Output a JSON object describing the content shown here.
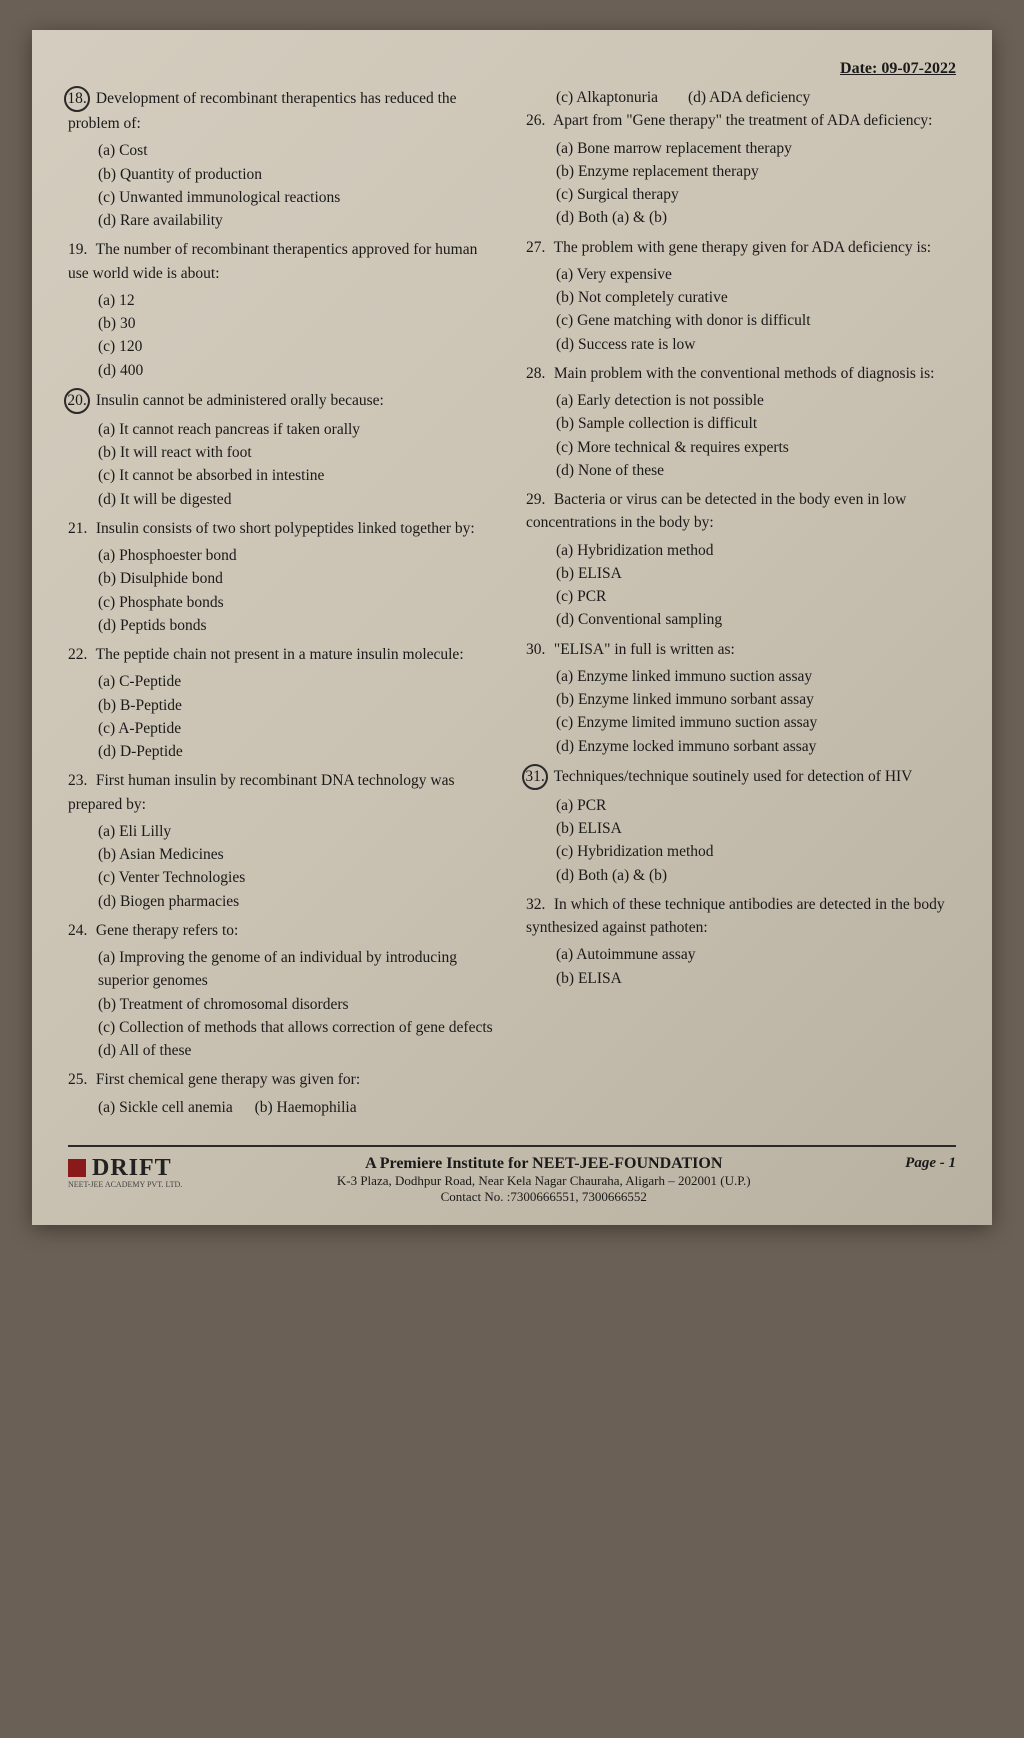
{
  "date": "Date: 09-07-2022",
  "left": {
    "q18": {
      "num": "18.",
      "text": "Development of recombinant therapentics has reduced the problem of:",
      "a": "(a) Cost",
      "b": "(b) Quantity of production",
      "c": "(c) Unwanted immunological reactions",
      "d": "(d) Rare availability"
    },
    "q19": {
      "num": "19.",
      "text": "The number of recombinant therapentics approved for human use world wide is about:",
      "a": "(a) 12",
      "b": "(b) 30",
      "c": "(c) 120",
      "d": "(d) 400"
    },
    "q20": {
      "num": "20.",
      "text": "Insulin cannot be administered orally because:",
      "a": "(a) It cannot reach pancreas if taken orally",
      "b": "(b) It will react with foot",
      "c": "(c) It cannot be absorbed in intestine",
      "d": "(d) It will be digested"
    },
    "q21": {
      "num": "21.",
      "text": "Insulin consists of two short polypeptides linked together by:",
      "a": "(a) Phosphoester bond",
      "b": "(b) Disulphide bond",
      "c": "(c) Phosphate bonds",
      "d": "(d) Peptids bonds"
    },
    "q22": {
      "num": "22.",
      "text": "The peptide chain not present in a mature insulin molecule:",
      "a": "(a) C-Peptide",
      "b": "(b) B-Peptide",
      "c": "(c) A-Peptide",
      "d": "(d) D-Peptide"
    },
    "q23": {
      "num": "23.",
      "text": "First human insulin by recombinant DNA technology was prepared by:",
      "a": "(a) Eli Lilly",
      "b": "(b) Asian Medicines",
      "c": "(c) Venter Technologies",
      "d": "(d) Biogen pharmacies"
    },
    "q24": {
      "num": "24.",
      "text": "Gene therapy refers to:",
      "a": "(a) Improving the genome of an individual by introducing superior genomes",
      "b": "(b) Treatment of chromosomal disorders",
      "c": "(c) Collection of methods that allows correction of gene defects",
      "d": "(d) All of these"
    },
    "q25": {
      "num": "25.",
      "text": "First chemical gene therapy was given for:",
      "a": "(a) Sickle cell anemia",
      "b": "(b) Haemophilia"
    }
  },
  "right": {
    "q25cont": {
      "c": "(c) Alkaptonuria",
      "d": "(d) ADA deficiency"
    },
    "q26": {
      "num": "26.",
      "text": "Apart from \"Gene therapy\" the treatment of ADA deficiency:",
      "a": "(a) Bone marrow replacement therapy",
      "b": "(b) Enzyme replacement therapy",
      "c": "(c) Surgical therapy",
      "d": "(d) Both (a) & (b)"
    },
    "q27": {
      "num": "27.",
      "text": "The problem with gene therapy given for ADA deficiency is:",
      "a": "(a) Very expensive",
      "b": "(b) Not completely curative",
      "c": "(c) Gene matching with donor is difficult",
      "d": "(d) Success rate is low"
    },
    "q28": {
      "num": "28.",
      "text": "Main problem with the conventional methods of diagnosis is:",
      "a": "(a) Early detection is not possible",
      "b": "(b) Sample collection is difficult",
      "c": "(c) More technical & requires experts",
      "d": "(d) None of these"
    },
    "q29": {
      "num": "29.",
      "text": "Bacteria or virus can be detected in the body even in low concentrations in the body by:",
      "a": "(a) Hybridization method",
      "b": "(b) ELISA",
      "c": "(c) PCR",
      "d": "(d) Conventional sampling"
    },
    "q30": {
      "num": "30.",
      "text": "\"ELISA\" in full is written as:",
      "a": "(a) Enzyme linked immuno suction assay",
      "b": "(b) Enzyme linked immuno sorbant assay",
      "c": "(c) Enzyme limited immuno suction assay",
      "d": "(d) Enzyme locked immuno sorbant assay"
    },
    "q31": {
      "num": "31.",
      "text": "Techniques/technique soutinely used for detection of HIV",
      "a": "(a) PCR",
      "b": "(b) ELISA",
      "c": "(c) Hybridization method",
      "d": "(d) Both (a) & (b)"
    },
    "q32": {
      "num": "32.",
      "text": "In which of these technique antibodies are detected in the body synthesized against pathoten:",
      "a": "(a) Autoimmune assay",
      "b": "(b) ELISA"
    }
  },
  "footer": {
    "brand": "DRIFT",
    "brand_sub": "NEET-JEE ACADEMY PVT. LTD.",
    "title": "A Premiere Institute for NEET-JEE-FOUNDATION",
    "addr": "K-3 Plaza, Dodhpur Road, Near Kela Nagar Chauraha, Aligarh – 202001 (U.P.)",
    "contact": "Contact No. :7300666551, 7300666552",
    "page": "Page - 1"
  }
}
